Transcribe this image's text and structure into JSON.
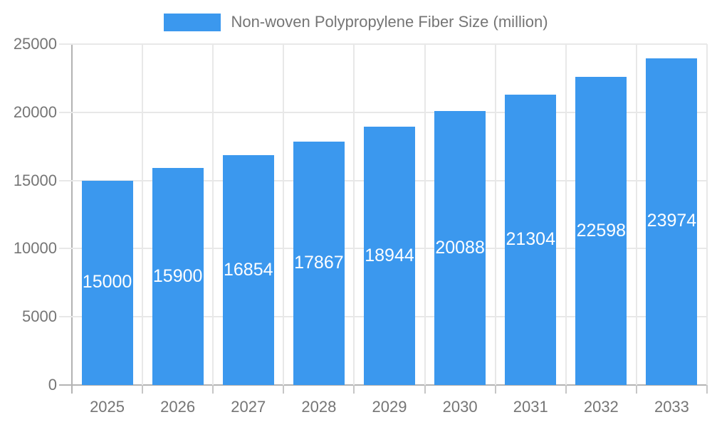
{
  "colors": {
    "bar": "#3B98EE",
    "bar_label_text": "#FFFFFF",
    "axis_text": "#757575",
    "grid_line": "#E8E8E8",
    "axis_line": "#B3B3B3",
    "background": "#FFFFFF"
  },
  "chart_data": {
    "type": "bar",
    "title": "",
    "legend_entries": [
      "Non-woven Polypropylene Fiber Size (million)"
    ],
    "legend_position": "top-center",
    "categories": [
      "2025",
      "2026",
      "2027",
      "2028",
      "2029",
      "2030",
      "2031",
      "2032",
      "2033"
    ],
    "series": [
      {
        "name": "Non-woven Polypropylene Fiber Size (million)",
        "values": [
          15000,
          15900,
          16854,
          17867,
          18944,
          20088,
          21304,
          22598,
          23974
        ]
      }
    ],
    "data_labels_shown": true,
    "xlabel": "",
    "ylabel": "",
    "ylim": [
      0,
      25000
    ],
    "yticks": [
      0,
      5000,
      10000,
      15000,
      20000,
      25000
    ],
    "grid": true
  }
}
